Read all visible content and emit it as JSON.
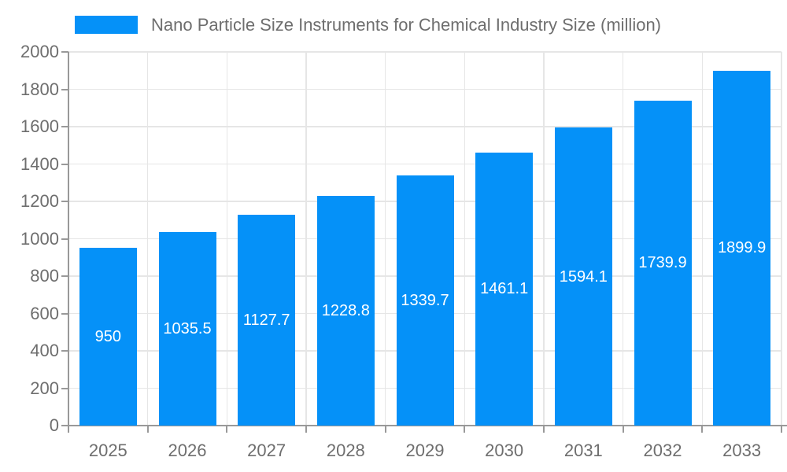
{
  "legend": {
    "label": "Nano Particle Size Instruments for Chemical Industry Size (million)"
  },
  "chart_data": {
    "type": "bar",
    "title": "Nano Particle Size Instruments for Chemical Industry Size (million)",
    "categories": [
      "2025",
      "2026",
      "2027",
      "2028",
      "2029",
      "2030",
      "2031",
      "2032",
      "2033"
    ],
    "values": [
      950,
      1035.5,
      1127.7,
      1228.8,
      1339.7,
      1461.1,
      1594.1,
      1739.9,
      1899.9
    ],
    "value_labels": [
      "950",
      "1035.5",
      "1127.7",
      "1228.8",
      "1339.7",
      "1461.1",
      "1594.1",
      "1739.9",
      "1899.9"
    ],
    "xlabel": "",
    "ylabel": "",
    "ylim": [
      0,
      2000
    ],
    "yticks": [
      0,
      200,
      400,
      600,
      800,
      1000,
      1200,
      1400,
      1600,
      1800,
      2000
    ],
    "grid": true,
    "legend_position": "top-left",
    "colors": {
      "bar": "#0591F8",
      "grid_line": "#e6e6e6",
      "axis_line": "#999999",
      "tick_text": "#6e6e6e",
      "value_text": "#ffffff",
      "background": "#ffffff"
    }
  }
}
